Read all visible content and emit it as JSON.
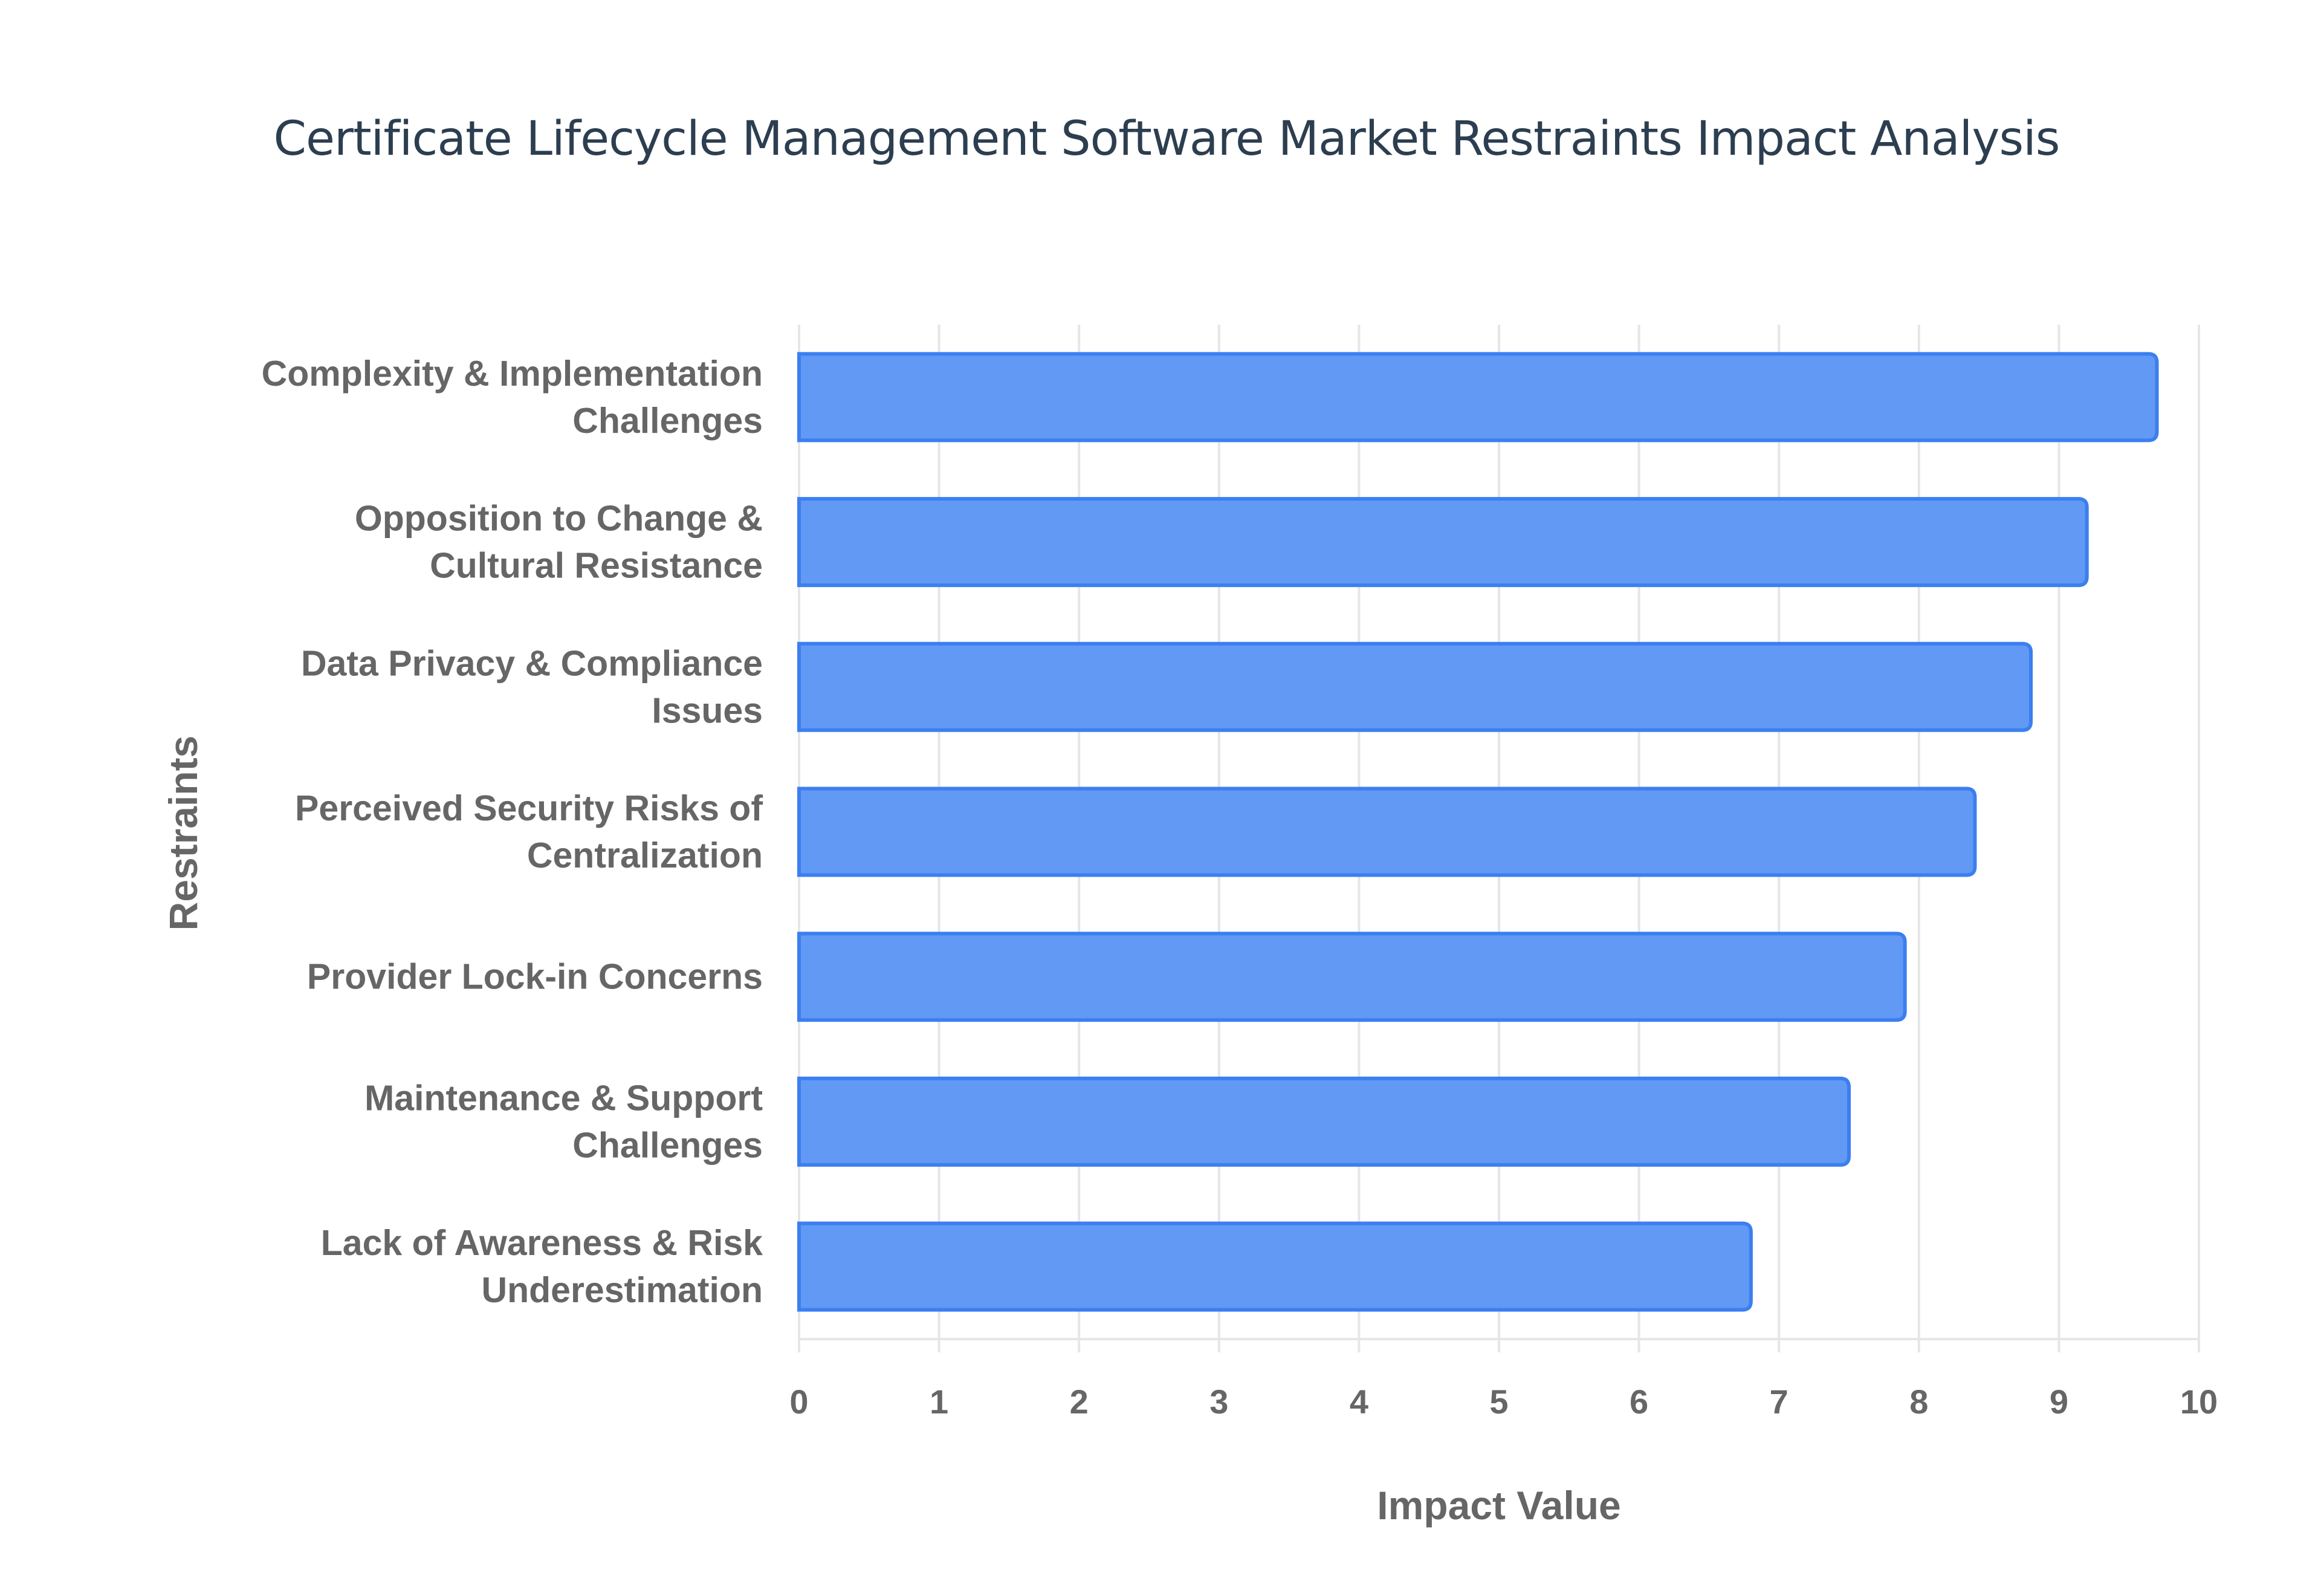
{
  "chart_data": {
    "type": "bar",
    "orientation": "horizontal",
    "title": "Certificate Lifecycle Management Software Market Restraints Impact Analysis",
    "xlabel": "Impact Value",
    "ylabel": "Restraints",
    "categories": [
      [
        "Complexity & Implementation",
        "Challenges"
      ],
      [
        "Opposition to Change &",
        "Cultural Resistance"
      ],
      [
        "Data Privacy & Compliance",
        "Issues"
      ],
      [
        "Perceived Security Risks of",
        "Centralization"
      ],
      [
        "Provider Lock-in Concerns"
      ],
      [
        "Maintenance & Support",
        "Challenges"
      ],
      [
        "Lack of Awareness & Risk",
        "Underestimation"
      ]
    ],
    "values": [
      9.7,
      9.2,
      8.8,
      8.4,
      7.9,
      7.5,
      6.8
    ],
    "xlim": [
      0,
      10
    ],
    "xticks": [
      "0",
      "1",
      "2",
      "3",
      "4",
      "5",
      "6",
      "7",
      "8",
      "9",
      "10"
    ],
    "grid": true,
    "legend": "none",
    "colors": {
      "bar_fill": "#6199f5",
      "bar_stroke": "#3b7ff0",
      "grid": "#e6e6e6",
      "text": "#666666",
      "title": "#2c3e50"
    }
  }
}
